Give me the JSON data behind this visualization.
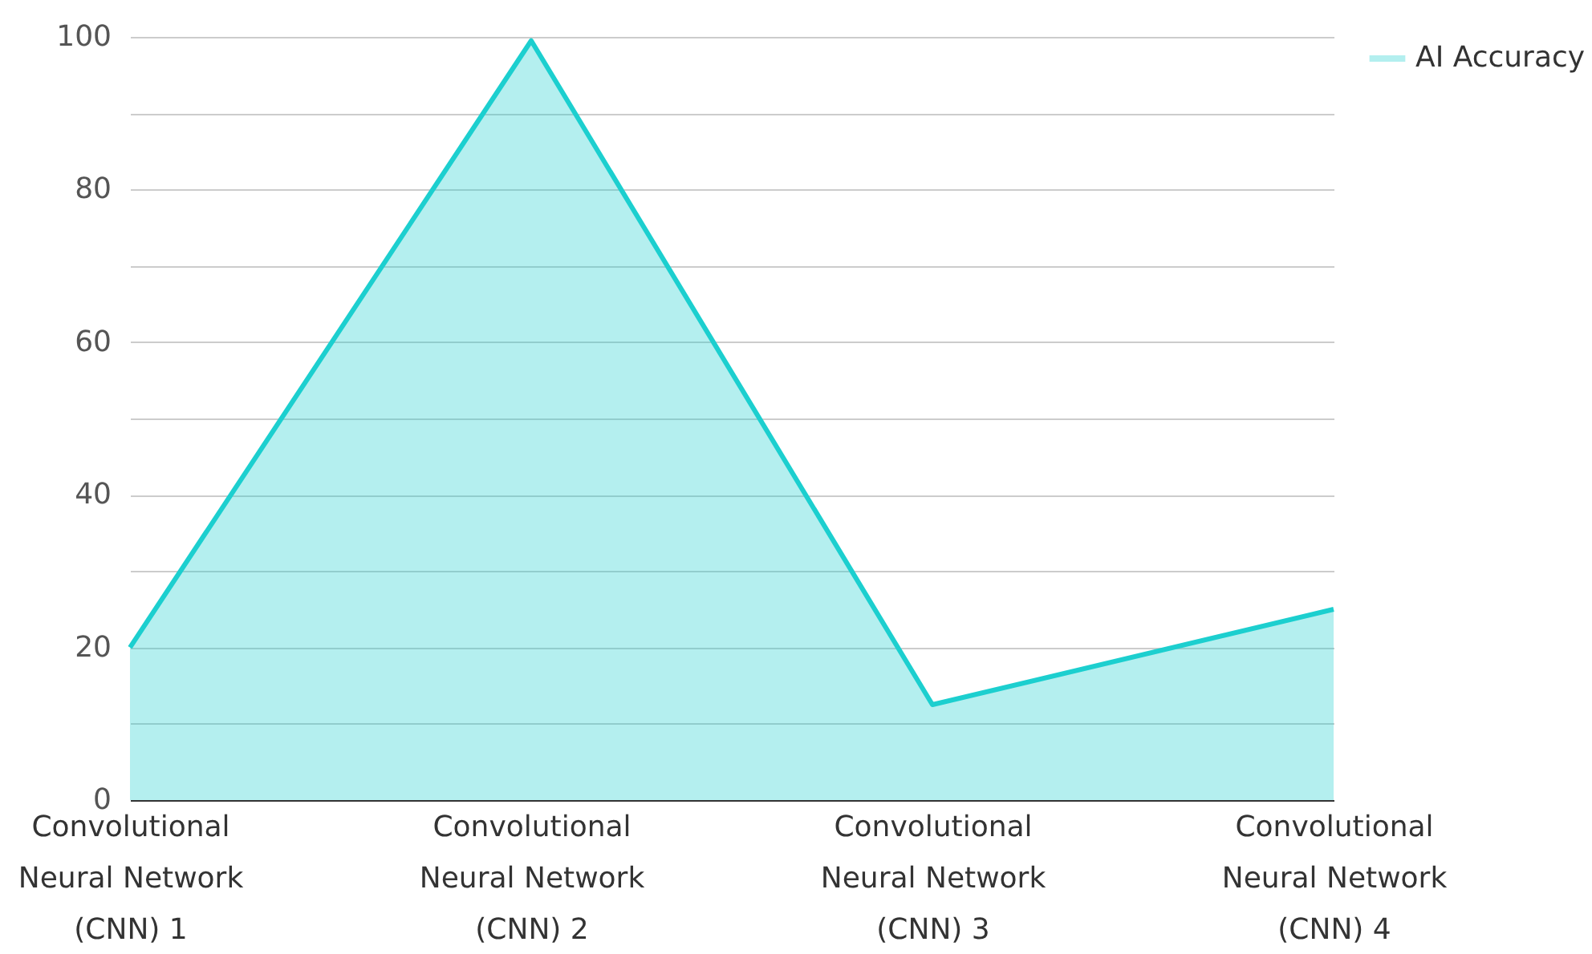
{
  "chart_data": {
    "type": "area",
    "categories": [
      "Convolutional Neural Network (CNN) 1",
      "Convolutional Neural Network (CNN) 2",
      "Convolutional Neural Network (CNN) 3",
      "Convolutional Neural Network (CNN) 4"
    ],
    "series": [
      {
        "name": "AI Accuracy",
        "color": "#1ccfcf",
        "values": [
          20,
          99.5,
          12.5,
          25
        ]
      }
    ],
    "ylim": [
      0,
      100
    ],
    "yticks": [
      0,
      {
        "value": 10,
        "label": null
      },
      20,
      {
        "value": 30,
        "label": null
      },
      40,
      {
        "value": 50,
        "label": null
      },
      60,
      {
        "value": 70,
        "label": null
      },
      80,
      {
        "value": 90,
        "label": null
      },
      100
    ],
    "grid": "y",
    "legend": "top right",
    "marker": "none",
    "line_style": "solid"
  }
}
